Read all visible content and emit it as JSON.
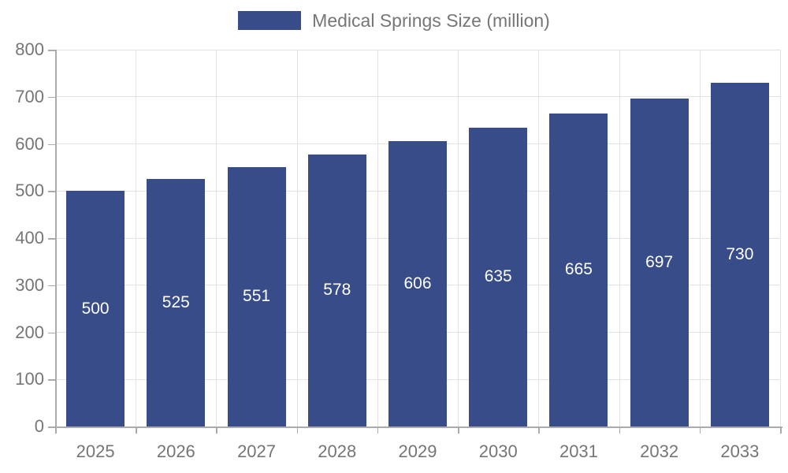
{
  "legend": {
    "label": "Medical Springs Size (million)",
    "swatch_color": "#374C88"
  },
  "colors": {
    "bar": "#374C88",
    "grid": "#E3E3E3",
    "axis": "#ABABAB",
    "tick_label": "#757575",
    "legend_text": "#767676",
    "bar_label": "#FFFFFF",
    "background": "#FFFFFF"
  },
  "chart_data": {
    "type": "bar",
    "title": "",
    "categories": [
      "2025",
      "2026",
      "2027",
      "2028",
      "2029",
      "2030",
      "2031",
      "2032",
      "2033"
    ],
    "series": [
      {
        "name": "Medical Springs Size (million)",
        "values": [
          500,
          525,
          551,
          578,
          606,
          635,
          665,
          697,
          730
        ],
        "color": "#374C88"
      }
    ],
    "xlabel": "",
    "ylabel": "",
    "ylim": [
      0,
      800
    ],
    "yticks": [
      0,
      100,
      200,
      300,
      400,
      500,
      600,
      700,
      800
    ],
    "grid": "horizontal-and-vertical",
    "legend_position": "top-center",
    "value_labels": "inside-center",
    "value_label_color": "#FFFFFF"
  }
}
